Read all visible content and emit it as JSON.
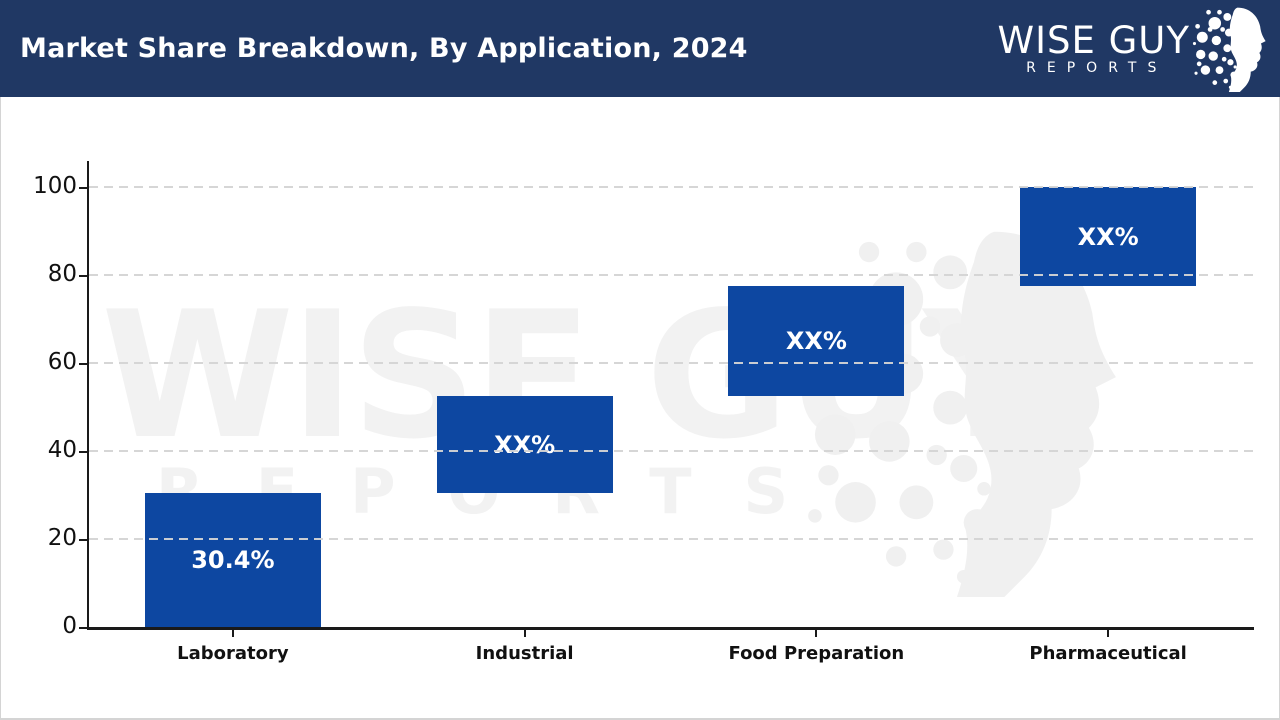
{
  "header": {
    "title": "Market Share Breakdown, By Application, 2024",
    "logo": {
      "line1": "WISE GUY",
      "line2": "REPORTS"
    }
  },
  "watermark": {
    "line1": "WISE GUY",
    "line2": "REPORTS"
  },
  "colors": {
    "header_bg": "#203864",
    "bar": "#0d47a1",
    "bar_label": "#ffffff",
    "gridline": "#d4d4d4",
    "axis": "#1a1a1a",
    "watermark": "#f2f2f2"
  },
  "chart_data": {
    "type": "bar",
    "subtype": "waterfall",
    "title": "Market Share Breakdown, By Application, 2024",
    "categories": [
      "Laboratory",
      "Industrial",
      "Food Preparation",
      "Pharmaceutical"
    ],
    "segments": [
      {
        "category": "Laboratory",
        "start": 0,
        "end": 30.4,
        "label": "30.4%"
      },
      {
        "category": "Industrial",
        "start": 30.4,
        "end": 52.5,
        "label": "XX%"
      },
      {
        "category": "Food Preparation",
        "start": 52.5,
        "end": 77.5,
        "label": "XX%"
      },
      {
        "category": "Pharmaceutical",
        "start": 77.5,
        "end": 100,
        "label": "XX%"
      }
    ],
    "yticks": [
      0,
      20,
      40,
      60,
      80,
      100
    ],
    "ylim": [
      0,
      105
    ],
    "xlabel": "",
    "ylabel": "",
    "grid": "dashed-horizontal",
    "legend": "none"
  }
}
